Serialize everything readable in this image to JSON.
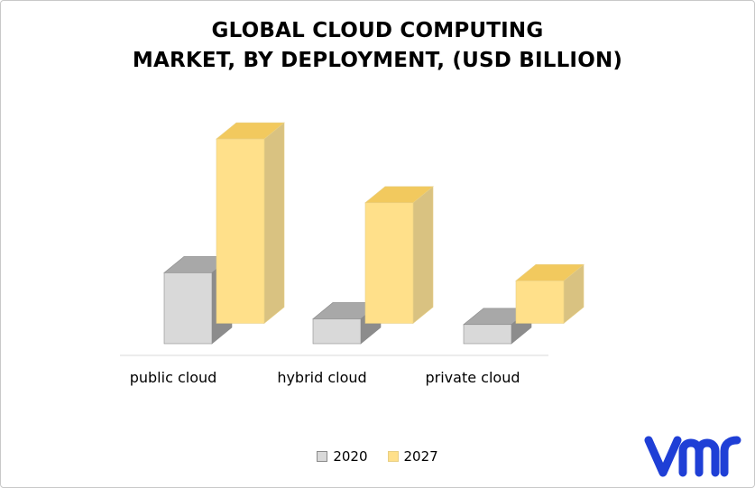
{
  "chart_data": {
    "type": "bar",
    "title": [
      "GLOBAL CLOUD COMPUTING",
      "MARKET, BY DEPLOYMENT, (USD BILLION)"
    ],
    "categories": [
      "public cloud",
      "hybrid cloud",
      "private cloud"
    ],
    "series": [
      {
        "name": "2020",
        "values": [
          1.0,
          0.35,
          0.27
        ],
        "base": 0
      },
      {
        "name": "2027",
        "values": [
          2.6,
          1.7,
          0.6
        ],
        "base": 1.0
      }
    ],
    "ylim": [
      0,
      3.6
    ],
    "grid": false,
    "legend_position": "bottom",
    "colors": {
      "2020": {
        "front": "#d9d9d9",
        "top": "#a8a8a8",
        "side": "#8c8c8c",
        "edge": "#8a8a8a"
      },
      "2027": {
        "front": "#ffe08a",
        "top": "#f2c95e",
        "side": "#d9c281",
        "edge": "#e8cf84"
      },
      "axis": "#d9d9d9"
    }
  },
  "logo": {
    "text": "vmr",
    "color": "#1f3fd6"
  }
}
